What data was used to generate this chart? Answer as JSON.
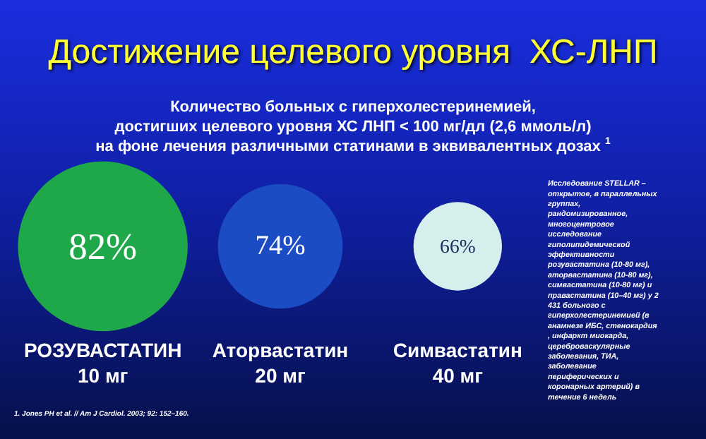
{
  "chart_data": {
    "type": "other",
    "title": "Достижение целевого уровня  ХС-ЛНП",
    "subtitle": "Количество больных с гиперхолестеринемией,\nдостигших целевого уровня ХС ЛНП < 100 мг/дл (2,6 ммоль/л)\nна фоне лечения различными статинами в эквивалентных дозах $^{1}$",
    "categories": [
      "РОЗУВАСТАТИН\n10 мг",
      "Аторвастатин\n20 мг",
      "Симвастатин\n40 мг"
    ],
    "values": [
      82,
      74,
      66
    ],
    "value_labels": [
      "82%",
      "74%",
      "66%"
    ],
    "colors": [
      "#1fa84a",
      "#1c4cc4",
      "#d6efec"
    ],
    "annotations": [
      "Исследование STELLAR – открытое, в параллельных группах, рандомизированное, многоцентровое исследование гиполипидемической эффективности розувастатина (10-80 мг), аторвастатина (10-80 мг), симвастатина (10-80 мг) и правастатина (10–40 мг) у 2 431 больного с гиперхолестеринемией (в анамнезе ИБС, стенокардия, инфаркт миокарда, цереброваскулярные заболевания, ТИА, заболевание периферических и коронарных артерий) в течение 6 недель",
      "1. Jones PH et al. // Am J Cardiol. 2003; 92: 152–160."
    ]
  }
}
